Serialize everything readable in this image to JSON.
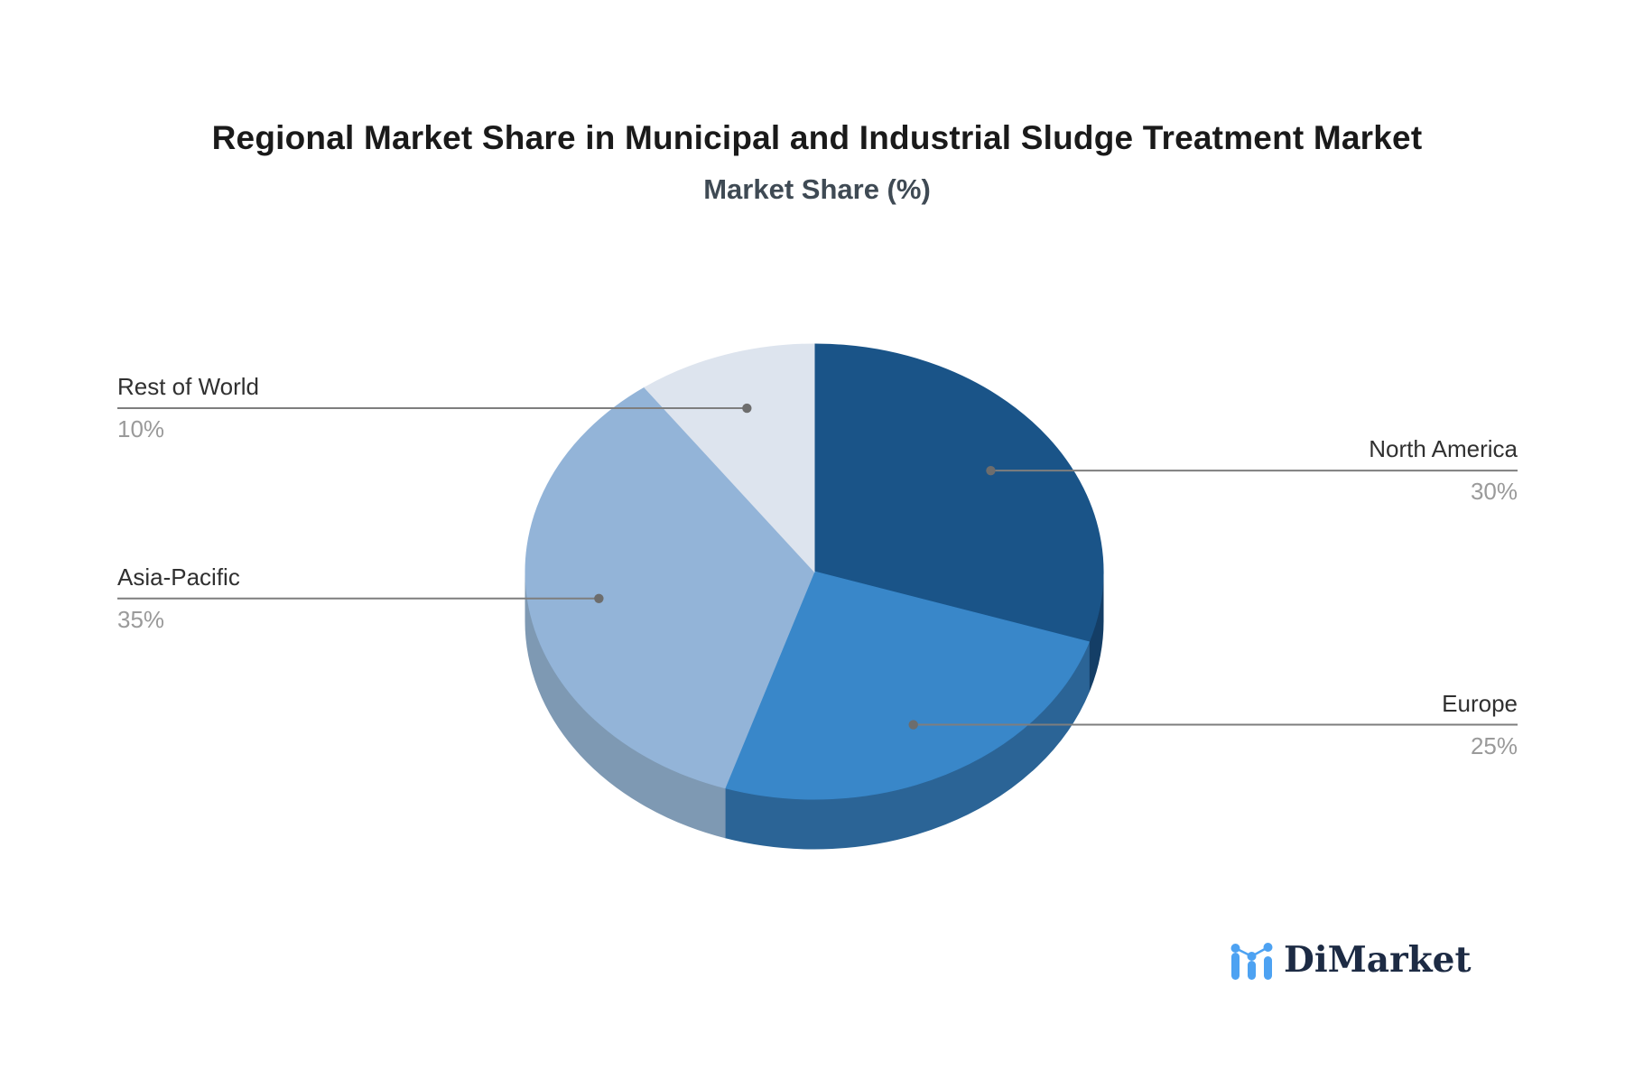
{
  "chart_data": {
    "type": "pie",
    "title": "Regional Market Share in Municipal and Industrial Sludge Treatment Market",
    "subtitle": "Market Share (%)",
    "unit": "%",
    "start_angle_deg": -90,
    "direction": "clockwise",
    "effect_3d": true,
    "legend_position": "none",
    "slices": [
      {
        "label": "North America",
        "value": 30,
        "pct_label": "30%",
        "color": "#1a5488",
        "depth_color": "#143e66",
        "label_side": "right"
      },
      {
        "label": "Europe",
        "value": 25,
        "pct_label": "25%",
        "color": "#3987c9",
        "depth_color": "#2b6496",
        "label_side": "right"
      },
      {
        "label": "Asia-Pacific",
        "value": 35,
        "pct_label": "35%",
        "color": "#93b4d8",
        "depth_color": "#7e99b3",
        "label_side": "left"
      },
      {
        "label": "Rest of World",
        "value": 10,
        "pct_label": "10%",
        "color": "#dde4ee",
        "depth_color": "#b9c4d3",
        "label_side": "left"
      }
    ]
  },
  "branding": {
    "name": "DiMarket",
    "icon": "bar-line-chart-icon",
    "icon_color": "#4da2f2",
    "text_color": "#1d2b44"
  },
  "colors": {
    "background": "#ffffff",
    "title": "#1a1a1a",
    "subtitle": "#3f4a54",
    "connector_line": "#7e7e7e",
    "connector_dot": "#6d6d6d",
    "slice_label_text": "#303030",
    "slice_pct_text": "#9a9a9a"
  }
}
